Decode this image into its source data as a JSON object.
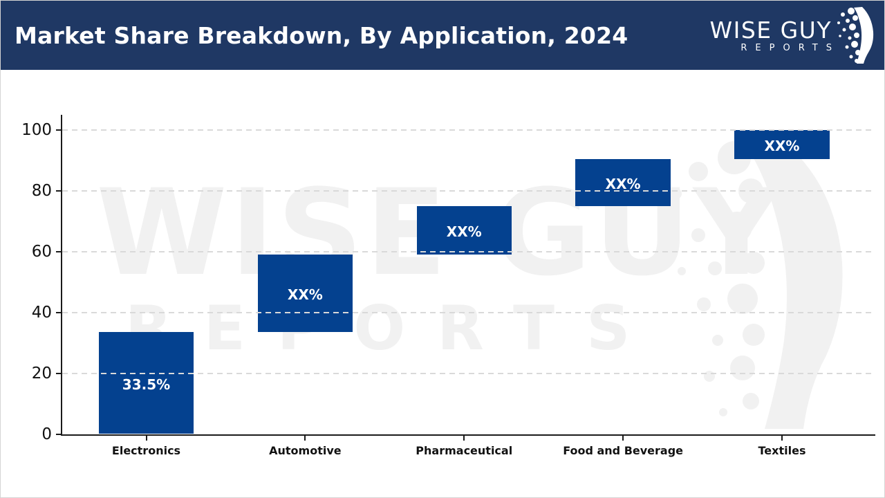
{
  "header": {
    "title": "Market Share Breakdown, By Application, 2024",
    "bg_color": "#1f3864",
    "logo": {
      "line1": "WISE GUY",
      "line2": "REPORTS"
    }
  },
  "watermark": {
    "line1": "WISE GUY",
    "line2": "REPORTS"
  },
  "chart_data": {
    "type": "bar",
    "subtype": "waterfall",
    "title": "Market Share Breakdown, By Application, 2024",
    "categories": [
      "Electronics",
      "Automotive",
      "Pharmaceutical",
      "Food and Beverage",
      "Textiles"
    ],
    "segments": [
      {
        "category": "Electronics",
        "start": 0,
        "end": 33.5,
        "label": "33.5%"
      },
      {
        "category": "Automotive",
        "start": 33.5,
        "end": 59,
        "label": "XX%"
      },
      {
        "category": "Pharmaceutical",
        "start": 59,
        "end": 75,
        "label": "XX%"
      },
      {
        "category": "Food and Beverage",
        "start": 75,
        "end": 90.5,
        "label": "XX%"
      },
      {
        "category": "Textiles",
        "start": 90.5,
        "end": 100,
        "label": "XX%"
      }
    ],
    "yticks": [
      0,
      20,
      40,
      60,
      80,
      100
    ],
    "ylim": [
      0,
      105
    ],
    "xlabel": "",
    "ylabel": "",
    "grid": "horizontal-dashed",
    "legend": "none",
    "bar_color": "#04418f",
    "bar_label_color": "#ffffff",
    "axis_color": "#1a1a1a",
    "gridline_color": "#d9d9d9"
  }
}
